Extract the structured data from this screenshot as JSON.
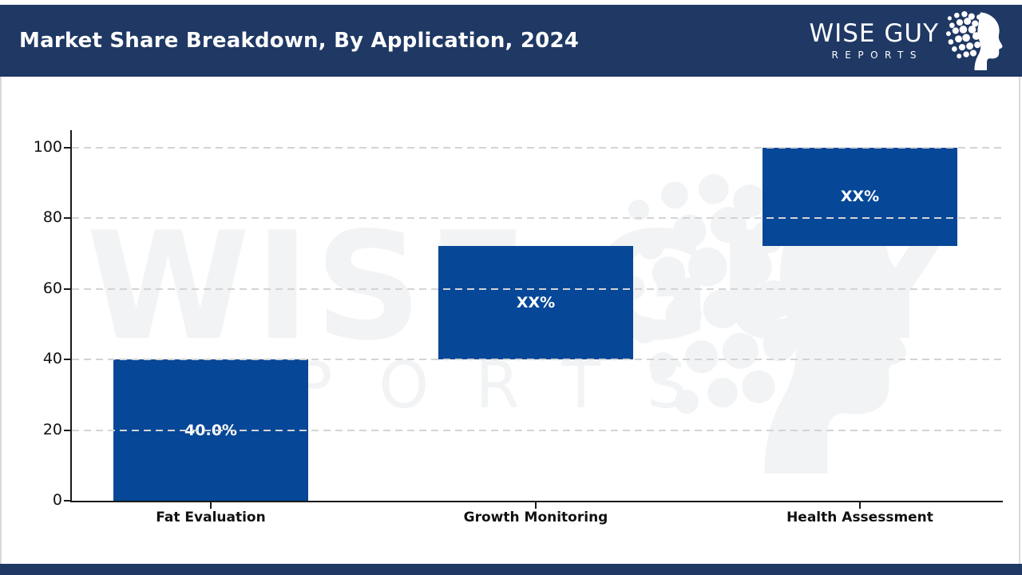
{
  "header": {
    "title": "Market Share Breakdown, By Application, 2024",
    "logo": {
      "line1": "WISE GUY",
      "line2": "REPORTS"
    }
  },
  "watermark": {
    "line1": "WISE GUY",
    "line2": "REPORTS"
  },
  "chart_data": {
    "type": "bar",
    "subtype": "floating-waterfall",
    "title": "Market Share Breakdown, By Application, 2024",
    "categories": [
      "Fat Evaluation",
      "Growth Monitoring",
      "Health Assessment"
    ],
    "series": [
      {
        "name": "Market Share",
        "segments": [
          {
            "category": "Fat Evaluation",
            "start": 0,
            "end": 40,
            "label": "40.0%"
          },
          {
            "category": "Growth Monitoring",
            "start": 40,
            "end": 72,
            "label": "XX%"
          },
          {
            "category": "Health Assessment",
            "start": 72,
            "end": 100,
            "label": "XX%"
          }
        ]
      }
    ],
    "xlabel": "",
    "ylabel": "",
    "yticks": [
      0,
      20,
      40,
      60,
      80,
      100
    ],
    "ylim": [
      0,
      104
    ],
    "grid": "dashed-horizontal",
    "legend": "none"
  },
  "colors": {
    "navy": "#1f3864",
    "bar_blue": "#064797",
    "grid": "#d4d4d4",
    "axis": "#1a1a1a",
    "watermark": "#f2f3f5",
    "bar_label": "#ffffff"
  }
}
